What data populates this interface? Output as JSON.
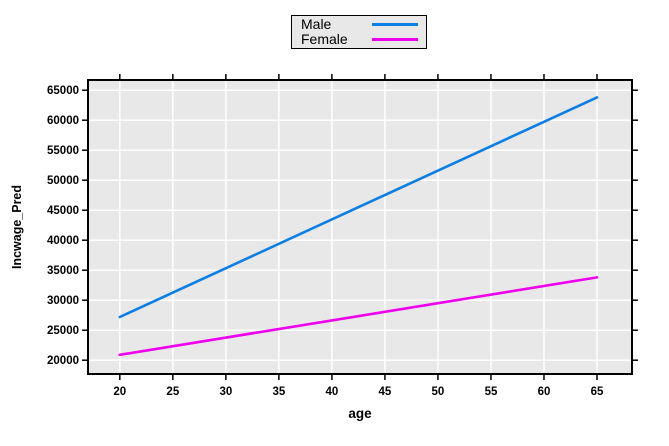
{
  "chart_data": {
    "type": "line",
    "title": "",
    "xlabel": "age",
    "ylabel": "Incwage_Pred",
    "xlim": [
      17.0,
      68.3
    ],
    "ylim": [
      17700,
      66700
    ],
    "xticks": [
      20,
      25,
      30,
      35,
      40,
      45,
      50,
      55,
      60,
      65
    ],
    "yticks": [
      20000,
      25000,
      30000,
      35000,
      40000,
      45000,
      50000,
      55000,
      60000,
      65000
    ],
    "grid": true,
    "plot_bg": "#e8e8e8",
    "grid_color": "#ffffff",
    "frame_color": "#000000",
    "tick_color": "#000000",
    "legend_position": "top-center-outside",
    "legend_bg": "#e8e8e8",
    "legend_border": "#000000",
    "series": [
      {
        "name": "Male",
        "color": "#0d7ee3",
        "x": [
          20,
          65
        ],
        "y": [
          27200,
          63800
        ]
      },
      {
        "name": "Female",
        "color": "#ee00ee",
        "x": [
          20,
          65
        ],
        "y": [
          20900,
          33800
        ]
      }
    ]
  }
}
